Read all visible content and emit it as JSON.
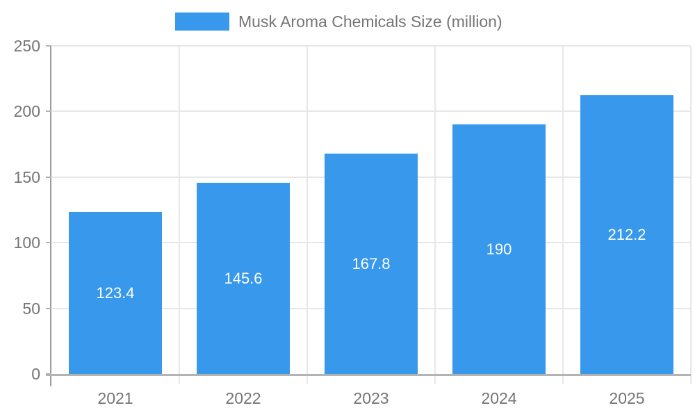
{
  "legend": {
    "label": "Musk Aroma Chemicals Size (million)"
  },
  "chart_data": {
    "type": "bar",
    "title": "",
    "categories": [
      "2021",
      "2022",
      "2023",
      "2024",
      "2025"
    ],
    "series": [
      {
        "name": "Musk Aroma Chemicals Size (million)",
        "values": [
          123.4,
          145.6,
          167.8,
          190,
          212.2
        ],
        "color": "#3898ec"
      }
    ],
    "value_labels": [
      "123.4",
      "145.6",
      "167.8",
      "190",
      "212.2"
    ],
    "xlabel": "",
    "ylabel": "",
    "ylim": [
      0,
      250
    ],
    "yticks": [
      0,
      50,
      100,
      150,
      200,
      250
    ],
    "grid": true,
    "legend_position": "top-center",
    "value_label_position": "inside-center"
  },
  "colors": {
    "bar": "#3898ec",
    "value_label_text": "#ffffff",
    "axis_text": "#757575",
    "legend_text": "#757575",
    "gridline": "#e7e7e7",
    "x_axis_line": "#b3b3b3",
    "y_axis_line": "#9c9c9c",
    "tick_mark": "#b3b3b3",
    "background": "#ffffff"
  }
}
